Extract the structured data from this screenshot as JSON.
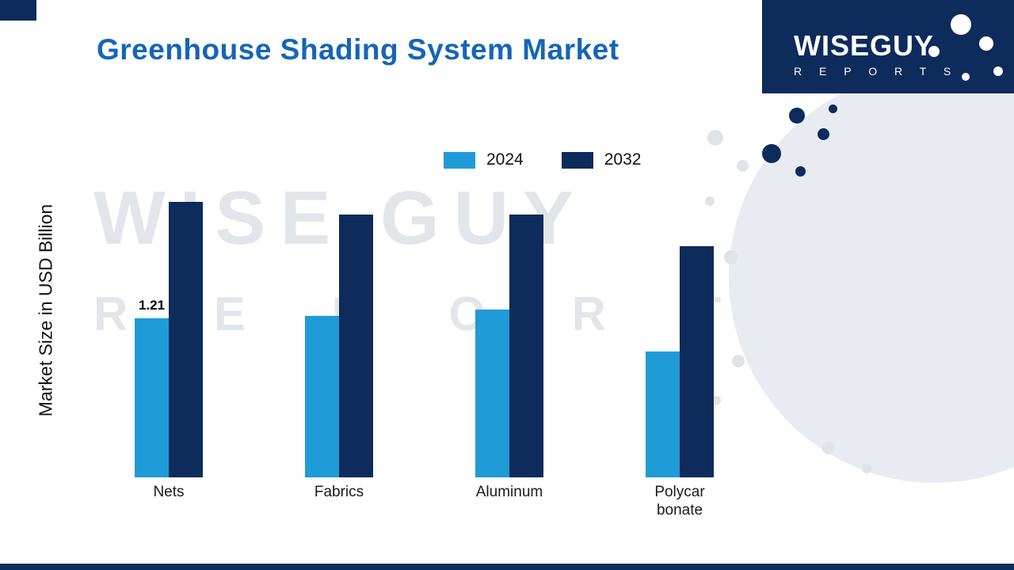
{
  "header": {
    "title": "Greenhouse Shading System Market"
  },
  "logo": {
    "brand": "WISEGUY",
    "reports": "R E P O R T S"
  },
  "watermark": {
    "line1": "WISE GUY",
    "line2": "R E P O R T S"
  },
  "chart_data": {
    "type": "bar",
    "title": "Greenhouse Shading System Market",
    "xlabel": "",
    "ylabel": "Market Size in USD Billion",
    "categories": [
      "Nets",
      "Fabrics",
      "Aluminum",
      "Polycarbonate"
    ],
    "category_display": {
      "Polycarbonate": "Polycar\nbonate"
    },
    "series": [
      {
        "name": "2024",
        "color": "#1f9bd7",
        "values": [
          1.21,
          1.23,
          1.28,
          0.96
        ]
      },
      {
        "name": "2032",
        "color": "#0d2b5b",
        "values": [
          2.1,
          2.0,
          2.0,
          1.76
        ]
      }
    ],
    "bar_label": {
      "series": "2024",
      "category": "Nets",
      "text": "1.21"
    },
    "ylim": [
      0,
      2.25
    ],
    "grid": false,
    "legend_position": "top-right"
  },
  "colors": {
    "navy": "#0d2b5b",
    "light_blue": "#1f9bd7",
    "head_gray": "#e8ecf2",
    "watermark_gray": "#ccd3dc",
    "title_blue": "#1565b8"
  }
}
